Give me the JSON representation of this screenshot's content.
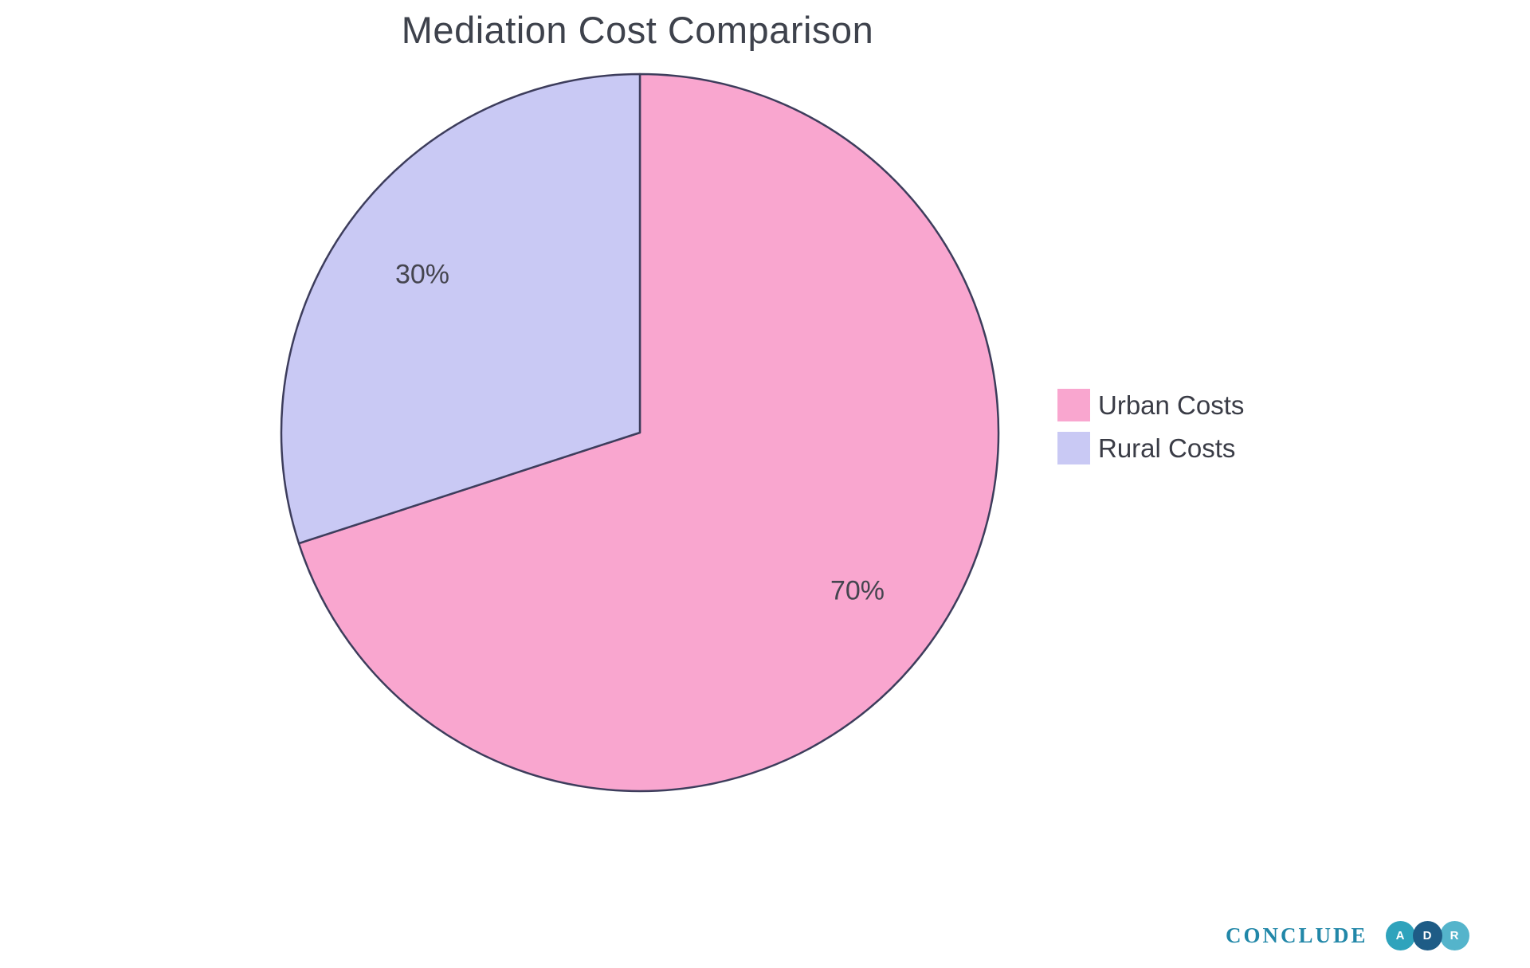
{
  "chart_data": {
    "type": "pie",
    "title": "Mediation Cost Comparison",
    "series": [
      {
        "label": "Urban Costs",
        "value": 70,
        "display": "70%",
        "color": "#F9A6CF"
      },
      {
        "label": "Rural Costs",
        "value": 30,
        "display": "30%",
        "color": "#C9C9F4"
      }
    ],
    "outline_color": "#3D3D5C",
    "legend_position": "right",
    "start_angle": "top",
    "direction": "clockwise"
  },
  "brand": {
    "wordmark": "CONCLUDE",
    "wordmark_color": "#2187A8",
    "badges": [
      {
        "letter": "A",
        "color": "#2FA3BC"
      },
      {
        "letter": "D",
        "color": "#1E5C86"
      },
      {
        "letter": "R",
        "color": "#54B4CB"
      }
    ]
  }
}
